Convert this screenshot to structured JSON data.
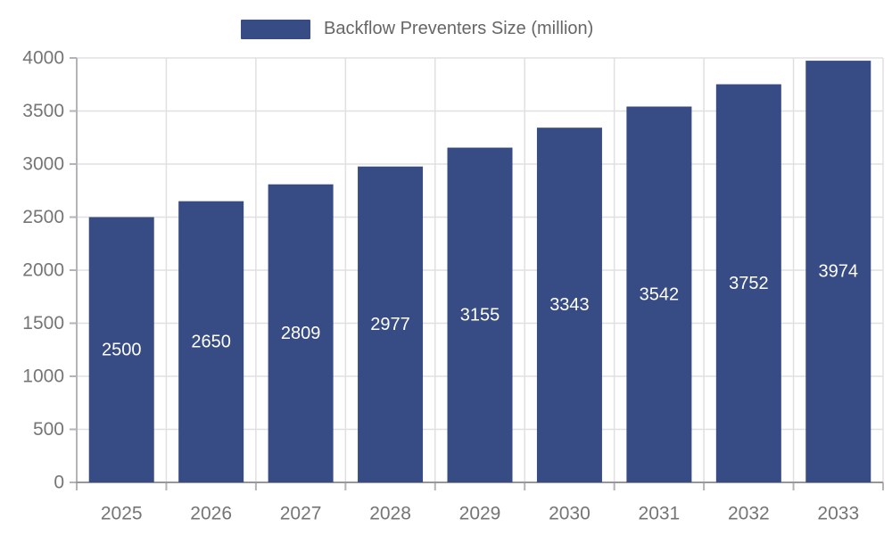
{
  "chart_data": {
    "type": "bar",
    "title": "Backflow Preventers Size (million)",
    "categories": [
      "2025",
      "2026",
      "2027",
      "2028",
      "2029",
      "2030",
      "2031",
      "2032",
      "2033"
    ],
    "values": [
      2500,
      2650,
      2809,
      2977,
      3155,
      3343,
      3542,
      3752,
      3974
    ],
    "xlabel": "",
    "ylabel": "",
    "ylim": [
      0,
      4000
    ],
    "yticks": [
      0,
      500,
      1000,
      1500,
      2000,
      2500,
      3000,
      3500,
      4000
    ],
    "grid": true,
    "legend_position": "top-center",
    "value_labels": "inside-center",
    "colors": {
      "bar": "#374b84",
      "value_label": "#ffffff",
      "grid": "#e0e0e0",
      "y_axis_line": "#b3b3b8",
      "x_axis_line": "#96969b",
      "tick": "#b3b3b8",
      "tick_label": "#757575",
      "legend_text": "#666666",
      "background": "#ffffff"
    }
  }
}
